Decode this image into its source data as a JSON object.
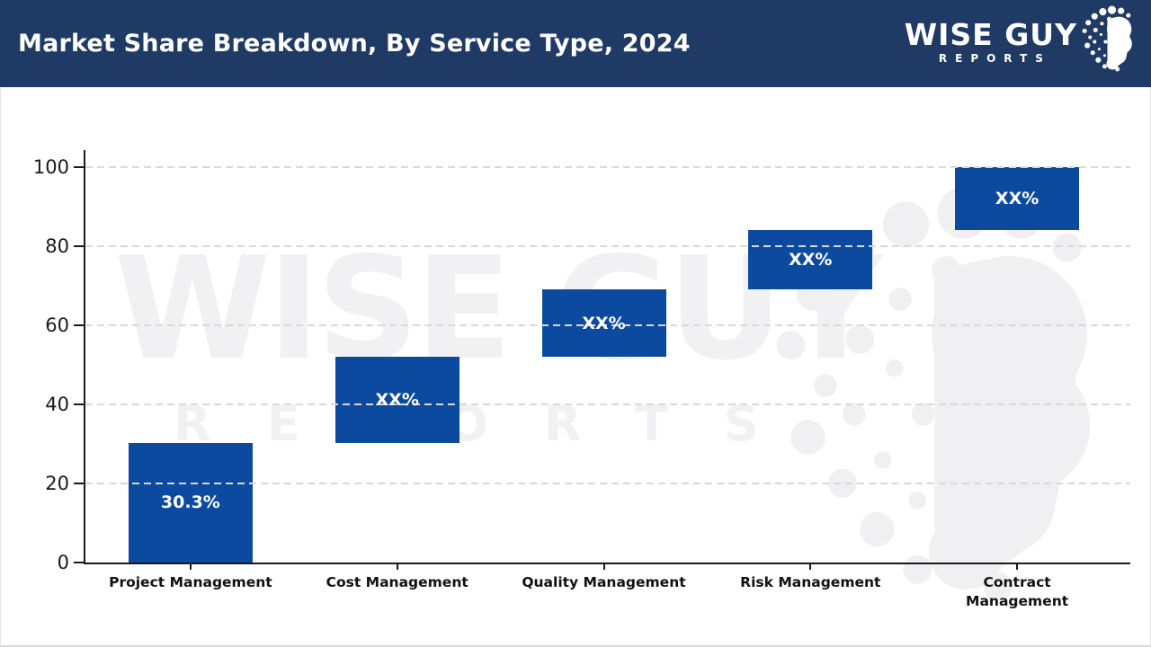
{
  "header": {
    "title": "Market Share Breakdown, By Service Type, 2024",
    "logo": {
      "line1": "WISE GUY",
      "line2": "REPORTS"
    }
  },
  "watermark": {
    "line1": "WISE GUY",
    "line2": "REPORTS"
  },
  "colors": {
    "header_bg": "#203A66",
    "bar": "#0B4A9E",
    "grid": "#d9d9d9",
    "axis": "#1a1a1a",
    "bar_label": "#ffffff",
    "watermark": "#f1f1f3"
  },
  "chart_data": {
    "type": "bar",
    "subtype": "waterfall",
    "title": "Market Share Breakdown, By Service Type, 2024",
    "categories": [
      "Project Management",
      "Cost Management",
      "Quality Management",
      "Risk Management",
      "Contract\nManagement"
    ],
    "segments": [
      {
        "category": "Project Management",
        "start": 0,
        "end": 30.3,
        "label": "30.3%"
      },
      {
        "category": "Cost Management",
        "start": 30.3,
        "end": 52,
        "label": "XX%"
      },
      {
        "category": "Quality Management",
        "start": 52,
        "end": 69,
        "label": "XX%"
      },
      {
        "category": "Risk Management",
        "start": 69,
        "end": 84,
        "label": "XX%"
      },
      {
        "category": "Contract Management",
        "start": 84,
        "end": 100,
        "label": "XX%"
      }
    ],
    "xlabel": "",
    "ylabel": "",
    "ylim": [
      0,
      100
    ],
    "yticks": [
      0,
      20,
      40,
      60,
      80,
      100
    ],
    "grid": "horizontal dashed, drawn above bars",
    "legend": "none"
  }
}
